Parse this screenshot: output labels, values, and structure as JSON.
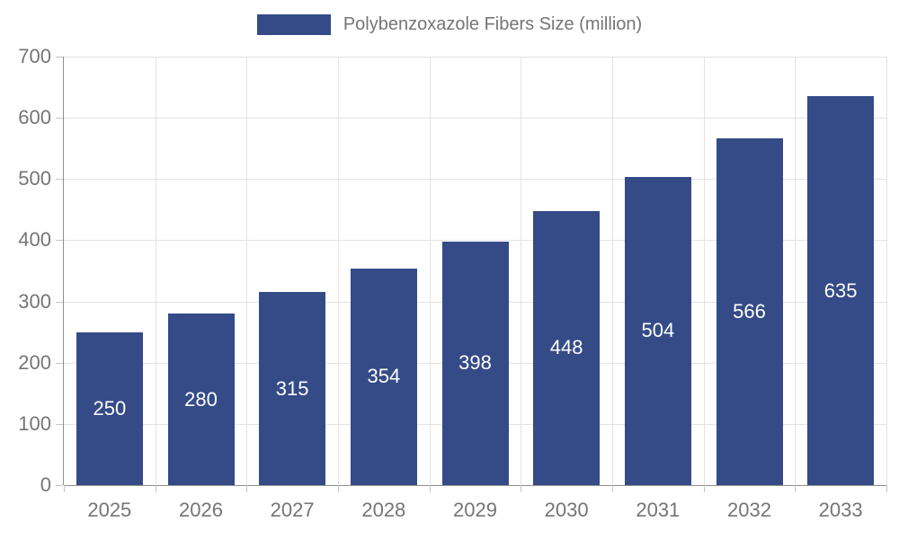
{
  "legend": {
    "label": "Polybenzoxazole Fibers Size (million)",
    "swatch_color": "#344B87"
  },
  "chart_data": {
    "type": "bar",
    "title": "Polybenzoxazole Fibers Size (million)",
    "categories": [
      "2025",
      "2026",
      "2027",
      "2028",
      "2029",
      "2030",
      "2031",
      "2032",
      "2033"
    ],
    "values": [
      250,
      280,
      315,
      354,
      398,
      448,
      504,
      566,
      635
    ],
    "xlabel": "",
    "ylabel": "",
    "ylim": [
      0,
      700
    ],
    "yticks": [
      0,
      100,
      200,
      300,
      400,
      500,
      600,
      700
    ],
    "grid": true,
    "legend_position": "top-center",
    "value_labels": "inside-center",
    "colors": {
      "bar": "#344B87",
      "axis_text": "#757575",
      "value_text": "#ffffff",
      "gridline": "#e3e3e6",
      "axis_line": "#8f8f8f",
      "tick": "#c4c4c4",
      "background": "#ffffff"
    }
  }
}
